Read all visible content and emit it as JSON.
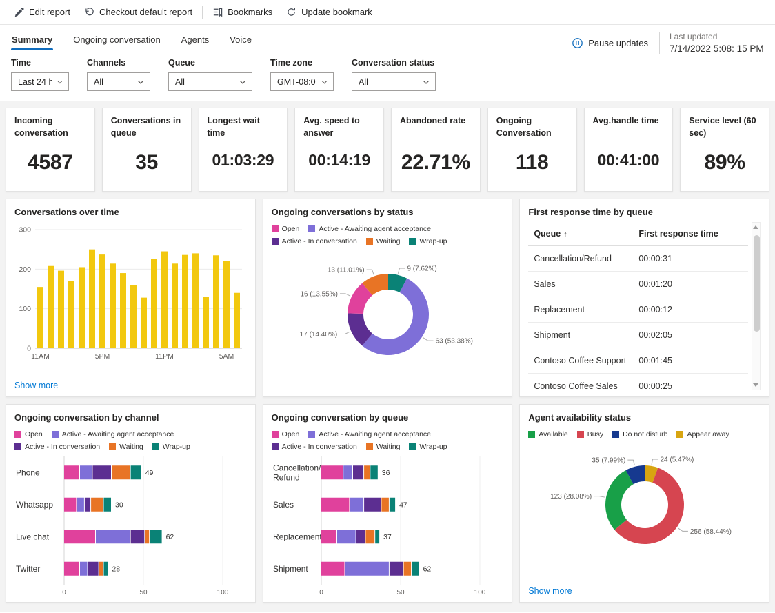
{
  "toolbar": {
    "edit_report": "Edit report",
    "checkout_default_report": "Checkout default report",
    "bookmarks": "Bookmarks",
    "update_bookmark": "Update bookmark"
  },
  "tabs": [
    {
      "label": "Summary",
      "active": true
    },
    {
      "label": "Ongoing conversation",
      "active": false
    },
    {
      "label": "Agents",
      "active": false
    },
    {
      "label": "Voice",
      "active": false
    }
  ],
  "header_right": {
    "pause_updates": "Pause updates",
    "last_updated_label": "Last updated",
    "last_updated_value": "7/14/2022 5:08: 15 PM"
  },
  "filters": [
    {
      "id": "time",
      "label": "Time",
      "value": "Last 24 hrs"
    },
    {
      "id": "channels",
      "label": "Channels",
      "value": "All"
    },
    {
      "id": "queue",
      "label": "Queue",
      "value": "All"
    },
    {
      "id": "time_zone",
      "label": "Time zone",
      "value": "GMT-08:00"
    },
    {
      "id": "conversation_status",
      "label": "Conversation status",
      "value": "All"
    }
  ],
  "kpis": [
    {
      "label": "Incoming conversation",
      "value": "4587"
    },
    {
      "label": "Conversations in queue",
      "value": "35"
    },
    {
      "label": "Longest wait time",
      "value": "01:03:29"
    },
    {
      "label": "Avg. speed to answer",
      "value": "00:14:19"
    },
    {
      "label": "Abandoned rate",
      "value": "22.71%"
    },
    {
      "label": "Ongoing Conversation",
      "value": "118"
    },
    {
      "label": "Avg.handle time",
      "value": "00:41:00"
    },
    {
      "label": "Service level (60 sec)",
      "value": "89%"
    }
  ],
  "links": {
    "show_more": "Show more"
  },
  "colors": {
    "accent": "#0f6cbd",
    "link": "#0078d4",
    "bar_yellow": "#F2C80F",
    "status": {
      "Open": "#E0419C",
      "Active - Awaiting agent acceptance": "#7E6FD8",
      "Active - In conversation": "#5C2E91",
      "Waiting": "#E87425",
      "Wrap-up": "#0A8276"
    },
    "agent": {
      "Available": "#18A048",
      "Busy": "#D64550",
      "Do not disturb": "#16398F",
      "Appear away": "#D8A511"
    }
  },
  "chart_data": [
    {
      "id": "conversations_over_time",
      "type": "bar",
      "title": "Conversations over time",
      "ylim": [
        0,
        300
      ],
      "yticks": [
        0,
        100,
        200,
        300
      ],
      "bar_color": "#F2C80F",
      "x_tick_labels": [
        "11AM",
        "5PM",
        "11PM",
        "5AM"
      ],
      "x_tick_positions": [
        0,
        6,
        12,
        18
      ],
      "values": [
        155,
        208,
        196,
        170,
        205,
        250,
        237,
        214,
        190,
        160,
        128,
        226,
        245,
        214,
        236,
        240,
        130,
        235,
        220,
        140
      ]
    },
    {
      "id": "ongoing_conversations_by_status",
      "type": "pie",
      "title": "Ongoing conversations by status",
      "legend": [
        "Open",
        "Active - Awaiting agent acceptance",
        "Active - In conversation",
        "Waiting",
        "Wrap-up"
      ],
      "total": 118,
      "segments_clockwise_from_top": [
        {
          "name": "Wrap-up",
          "value": 9,
          "pct": "7.62%"
        },
        {
          "name": "Active - Awaiting agent acceptance",
          "value": 63,
          "pct": "53.38%"
        },
        {
          "name": "Active - In conversation",
          "value": 17,
          "pct": "14.40%"
        },
        {
          "name": "Open",
          "value": 16,
          "pct": "13.55%"
        },
        {
          "name": "Waiting",
          "value": 13,
          "pct": "11.01%"
        }
      ]
    },
    {
      "id": "first_response_time_by_queue",
      "type": "table",
      "title": "First response time by queue",
      "columns": [
        "Queue",
        "First response time"
      ],
      "sort": {
        "column": "Queue",
        "direction": "asc"
      },
      "rows": [
        [
          "Cancellation/Refund",
          "00:00:31"
        ],
        [
          "Sales",
          "00:01:20"
        ],
        [
          "Replacement",
          "00:00:12"
        ],
        [
          "Shipment",
          "00:02:05"
        ],
        [
          "Contoso Coffee Support",
          "00:01:45"
        ],
        [
          "Contoso Coffee Sales",
          "00:00:25"
        ]
      ]
    },
    {
      "id": "ongoing_conversation_by_channel",
      "type": "stacked_bar_horizontal",
      "title": "Ongoing conversation by channel",
      "legend": [
        "Open",
        "Active - Awaiting agent acceptance",
        "Active - In conversation",
        "Waiting",
        "Wrap-up"
      ],
      "categories": [
        "Phone",
        "Whatsapp",
        "Live chat",
        "Twitter"
      ],
      "totals": [
        49,
        30,
        62,
        28
      ],
      "xlim": [
        0,
        100
      ],
      "xticks": [
        0,
        50,
        100
      ],
      "series": [
        {
          "name": "Open",
          "values": [
            10,
            8,
            20,
            10
          ]
        },
        {
          "name": "Active - Awaiting agent acceptance",
          "values": [
            8,
            5,
            22,
            5
          ]
        },
        {
          "name": "Active - In conversation",
          "values": [
            12,
            4,
            9,
            7
          ]
        },
        {
          "name": "Waiting",
          "values": [
            12,
            8,
            3,
            3
          ]
        },
        {
          "name": "Wrap-up",
          "values": [
            7,
            5,
            8,
            3
          ]
        }
      ]
    },
    {
      "id": "ongoing_conversation_by_queue",
      "type": "stacked_bar_horizontal",
      "title": "Ongoing conversation by queue",
      "legend": [
        "Open",
        "Active - Awaiting agent acceptance",
        "Active - In conversation",
        "Waiting",
        "Wrap-up"
      ],
      "categories": [
        "Cancellation/Refund",
        "Sales",
        "Replacement",
        "Shipment"
      ],
      "totals": [
        36,
        47,
        37,
        62
      ],
      "xlim": [
        0,
        100
      ],
      "xticks": [
        0,
        50,
        100
      ],
      "series": [
        {
          "name": "Open",
          "values": [
            14,
            18,
            10,
            15
          ]
        },
        {
          "name": "Active - Awaiting agent acceptance",
          "values": [
            6,
            9,
            12,
            28
          ]
        },
        {
          "name": "Active - In conversation",
          "values": [
            7,
            11,
            6,
            9
          ]
        },
        {
          "name": "Waiting",
          "values": [
            4,
            5,
            6,
            5
          ]
        },
        {
          "name": "Wrap-up",
          "values": [
            5,
            4,
            3,
            5
          ]
        }
      ]
    },
    {
      "id": "agent_availability_status",
      "type": "pie",
      "title": "Agent availability status",
      "legend": [
        "Available",
        "Busy",
        "Do not disturb",
        "Appear away"
      ],
      "total": 438,
      "segments_clockwise_from_top": [
        {
          "name": "Appear away",
          "value": 24,
          "pct": "5.47%"
        },
        {
          "name": "Busy",
          "value": 256,
          "pct": "58.44%"
        },
        {
          "name": "Available",
          "value": 123,
          "pct": "28.08%"
        },
        {
          "name": "Do not disturb",
          "value": 35,
          "pct": "7.99%"
        }
      ]
    }
  ]
}
